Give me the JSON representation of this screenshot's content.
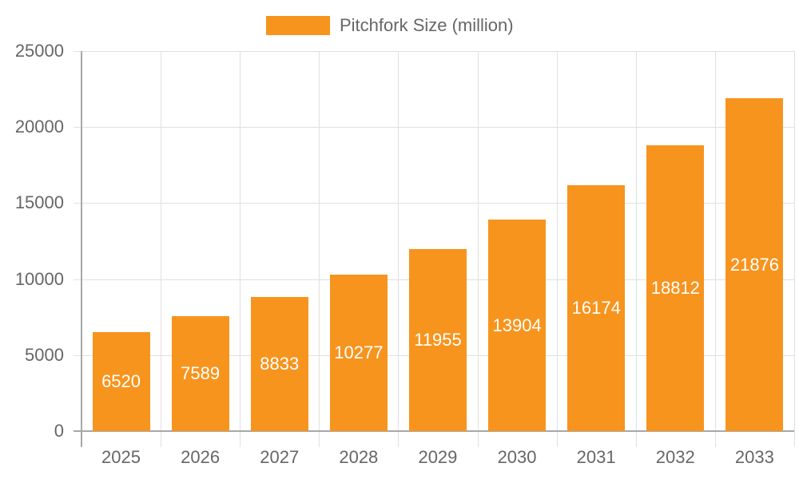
{
  "chart_data": {
    "type": "bar",
    "title": "",
    "xlabel": "",
    "ylabel": "",
    "legend": {
      "position": "top",
      "entries": [
        "Pitchfork Size (million)"
      ]
    },
    "categories": [
      "2025",
      "2026",
      "2027",
      "2028",
      "2029",
      "2030",
      "2031",
      "2032",
      "2033"
    ],
    "series": [
      {
        "name": "Pitchfork Size (million)",
        "color": "#f7941e",
        "values": [
          6520,
          7589,
          8833,
          10277,
          11955,
          13904,
          16174,
          18812,
          21876
        ]
      }
    ],
    "ylim": [
      0,
      25000
    ],
    "yticks": [
      "0",
      "5000",
      "10000",
      "15000",
      "20000",
      "25000"
    ],
    "grid": true,
    "data_labels": true
  },
  "legend": {
    "label": "Pitchfork Size (million)",
    "color": "#f7941e"
  }
}
